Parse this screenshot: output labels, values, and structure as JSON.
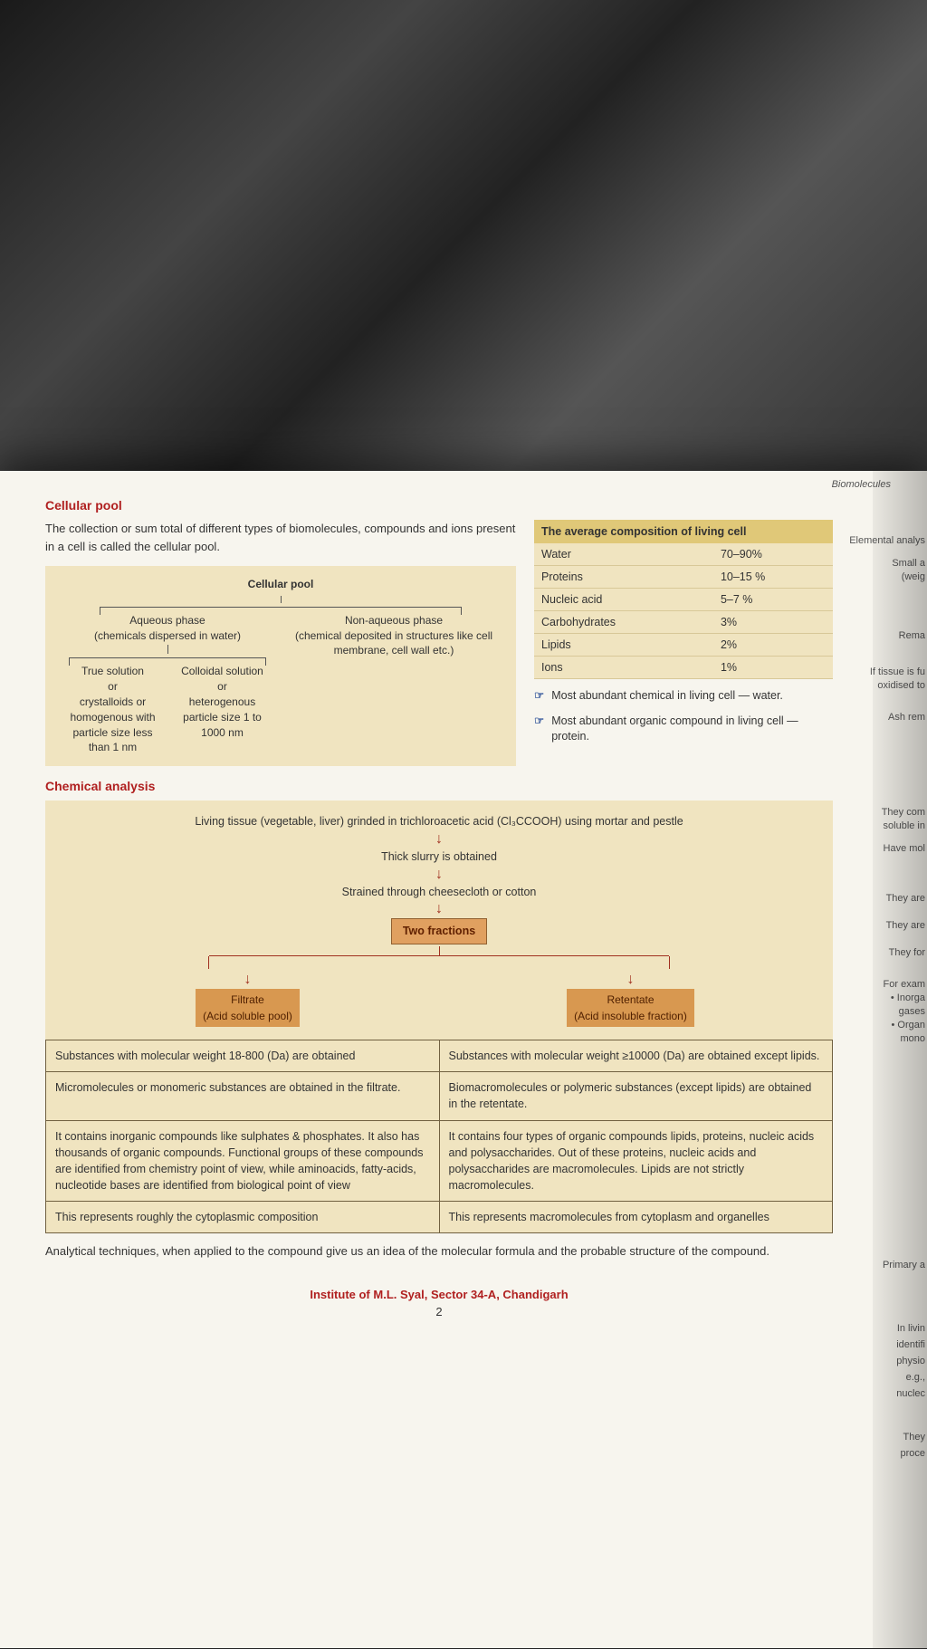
{
  "section1": {
    "heading": "Cellular pool",
    "intro": "The collection or sum total of different types of biomolecules, compounds and ions present in a cell is called the cellular pool."
  },
  "diagram": {
    "title": "Cellular pool",
    "left": {
      "title": "Aqueous phase",
      "sub": "(chemicals dispersed in water)",
      "c1_title": "True solution",
      "c1_or": "or",
      "c1_body": "crystalloids or homogenous with particle size less than 1 nm",
      "c2_title": "Colloidal solution",
      "c2_or": "or",
      "c2_body": "heterogenous particle size 1 to 1000 nm"
    },
    "right": {
      "title": "Non-aqueous phase",
      "sub": "(chemical deposited in structures like cell membrane, cell wall etc.)"
    }
  },
  "composition": {
    "header": "The average composition of living cell",
    "rows": [
      {
        "name": "Water",
        "pct": "70–90%"
      },
      {
        "name": "Proteins",
        "pct": "10–15 %"
      },
      {
        "name": "Nucleic acid",
        "pct": "5–7 %"
      },
      {
        "name": "Carbohydrates",
        "pct": "3%"
      },
      {
        "name": "Lipids",
        "pct": "2%"
      },
      {
        "name": "Ions",
        "pct": "1%"
      }
    ]
  },
  "notes": {
    "n1": "Most abundant chemical in living cell — water.",
    "n2": "Most abundant organic compound in living cell — protein."
  },
  "section2": {
    "heading": "Chemical analysis"
  },
  "flow": {
    "s1": "Living tissue (vegetable, liver) grinded in trichloroacetic acid (Cl₃CCOOH) using mortar and pestle",
    "s2": "Thick slurry is obtained",
    "s3": "Strained through cheesecloth or cotton",
    "s4": "Two fractions",
    "f1_title": "Filtrate",
    "f1_sub": "(Acid soluble pool)",
    "f2_title": "Retentate",
    "f2_sub": "(Acid insoluble fraction)"
  },
  "compare": {
    "rows": [
      {
        "l": "Substances with molecular weight 18-800 (Da) are obtained",
        "r": "Substances with molecular weight ≥10000 (Da) are obtained except lipids."
      },
      {
        "l": "Micromolecules or monomeric substances are obtained in the filtrate.",
        "r": "Biomacromolecules or polymeric substances (except lipids) are obtained in the retentate."
      },
      {
        "l": "It contains inorganic compounds like sulphates & phosphates. It also has thousands of organic compounds. Functional groups of these compounds are identified from chemistry point of view, while aminoacids, fatty-acids, nucleotide bases are identified from biological point of view",
        "r": "It contains four types of organic compounds lipids, proteins, nucleic acids and polysaccharides. Out of these proteins, nucleic acids and polysaccharides are macromolecules. Lipids are not strictly macromolecules."
      },
      {
        "l": "This represents roughly the cytoplasmic composition",
        "r": "This represents macromolecules from cytoplasm and organelles"
      }
    ]
  },
  "closing": "Analytical techniques, when applied to the compound give us an idea of the molecular formula and the probable structure of the compound.",
  "footer": {
    "institute": "Institute of M.L. Syal, Sector 34-A, Chandigarh",
    "page": "2"
  },
  "cutoff": {
    "t1": "Biomolecules",
    "t2": "Elemental analys",
    "t3": "Small a",
    "t4": "(weig",
    "t5": "Rema",
    "t6": "If tissue is fu",
    "t7": "oxidised to",
    "t8": "Ash rem",
    "t9": "They com",
    "t10": "soluble in",
    "t11": "Have mol",
    "t12": "They are",
    "t13": "They are",
    "t14": "They for",
    "t15": "For exam",
    "t16": "• Inorga",
    "t17": "gases",
    "t18": "• Organ",
    "t19": "mono",
    "t20": "Primary a",
    "t21": "In livin",
    "t22": "identifi",
    "t23": "physio",
    "t24": "e.g.,",
    "t25": "nuclec",
    "t26": "They",
    "t27": "proce"
  },
  "colors": {
    "red": "#b02020",
    "box_bg": "#f0e4c0",
    "header_bg": "#e0c878",
    "fraction_bg": "#e0a060"
  }
}
